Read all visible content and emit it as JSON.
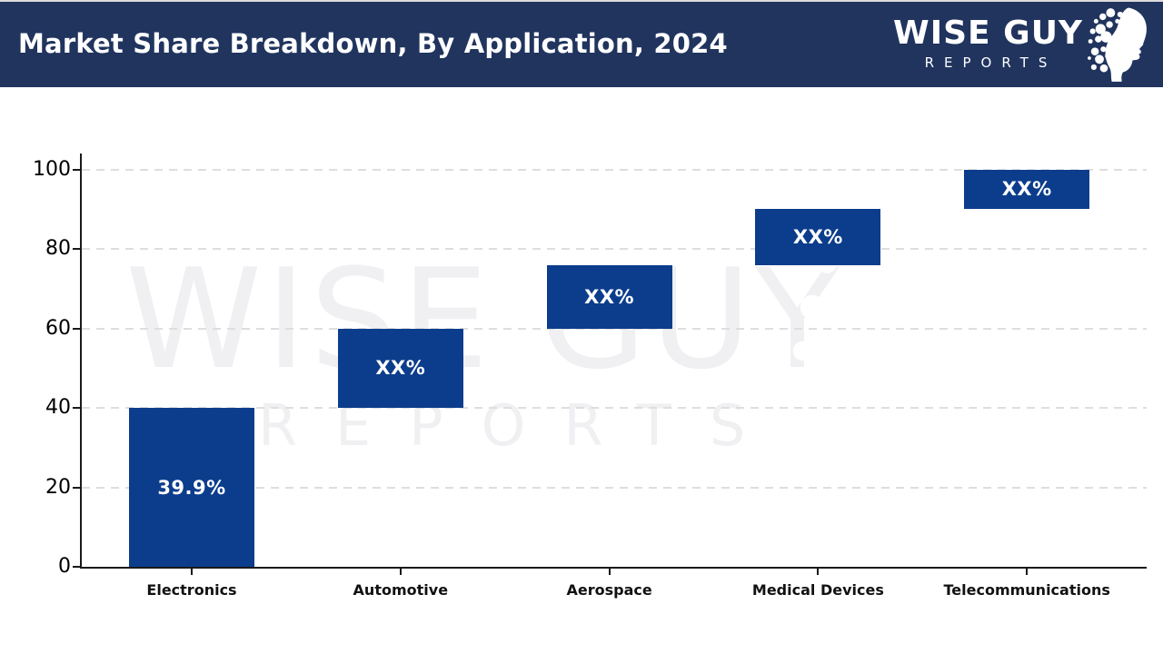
{
  "header": {
    "title": "Market Share Breakdown, By Application, 2024",
    "logo": {
      "brand": "WISE GUY",
      "sub": "REPORTS"
    }
  },
  "watermark": {
    "brand": "WISE GUY",
    "sub": "REPORTS"
  },
  "colors": {
    "header_bg": "#20345e",
    "bar": "#0c3d8c",
    "bar_label": "#ffffff",
    "grid": "#dedede",
    "axis": "#1a1a1a",
    "watermark": "#f0f0f3"
  },
  "chart_data": {
    "type": "bar",
    "subtype": "waterfall",
    "title": "Market Share Breakdown, By Application, 2024",
    "categories": [
      "Electronics",
      "Automotive",
      "Aerospace",
      "Medical Devices",
      "Telecommunications"
    ],
    "series": [
      {
        "name": "Market share (%)",
        "segments": [
          {
            "category": "Electronics",
            "start": 0,
            "end": 39.9,
            "label": "39.9%"
          },
          {
            "category": "Automotive",
            "start": 39.9,
            "end": 60,
            "label": "XX%"
          },
          {
            "category": "Aerospace",
            "start": 60,
            "end": 76,
            "label": "XX%"
          },
          {
            "category": "Medical Devices",
            "start": 76,
            "end": 90,
            "label": "XX%"
          },
          {
            "category": "Telecommunications",
            "start": 90,
            "end": 100,
            "label": "XX%"
          }
        ]
      }
    ],
    "xlabel": "",
    "ylabel": "",
    "yticks": [
      0,
      20,
      40,
      60,
      80,
      100
    ],
    "ylim": [
      0,
      104
    ],
    "grid": "dashed-horizontal",
    "legend": "none"
  }
}
